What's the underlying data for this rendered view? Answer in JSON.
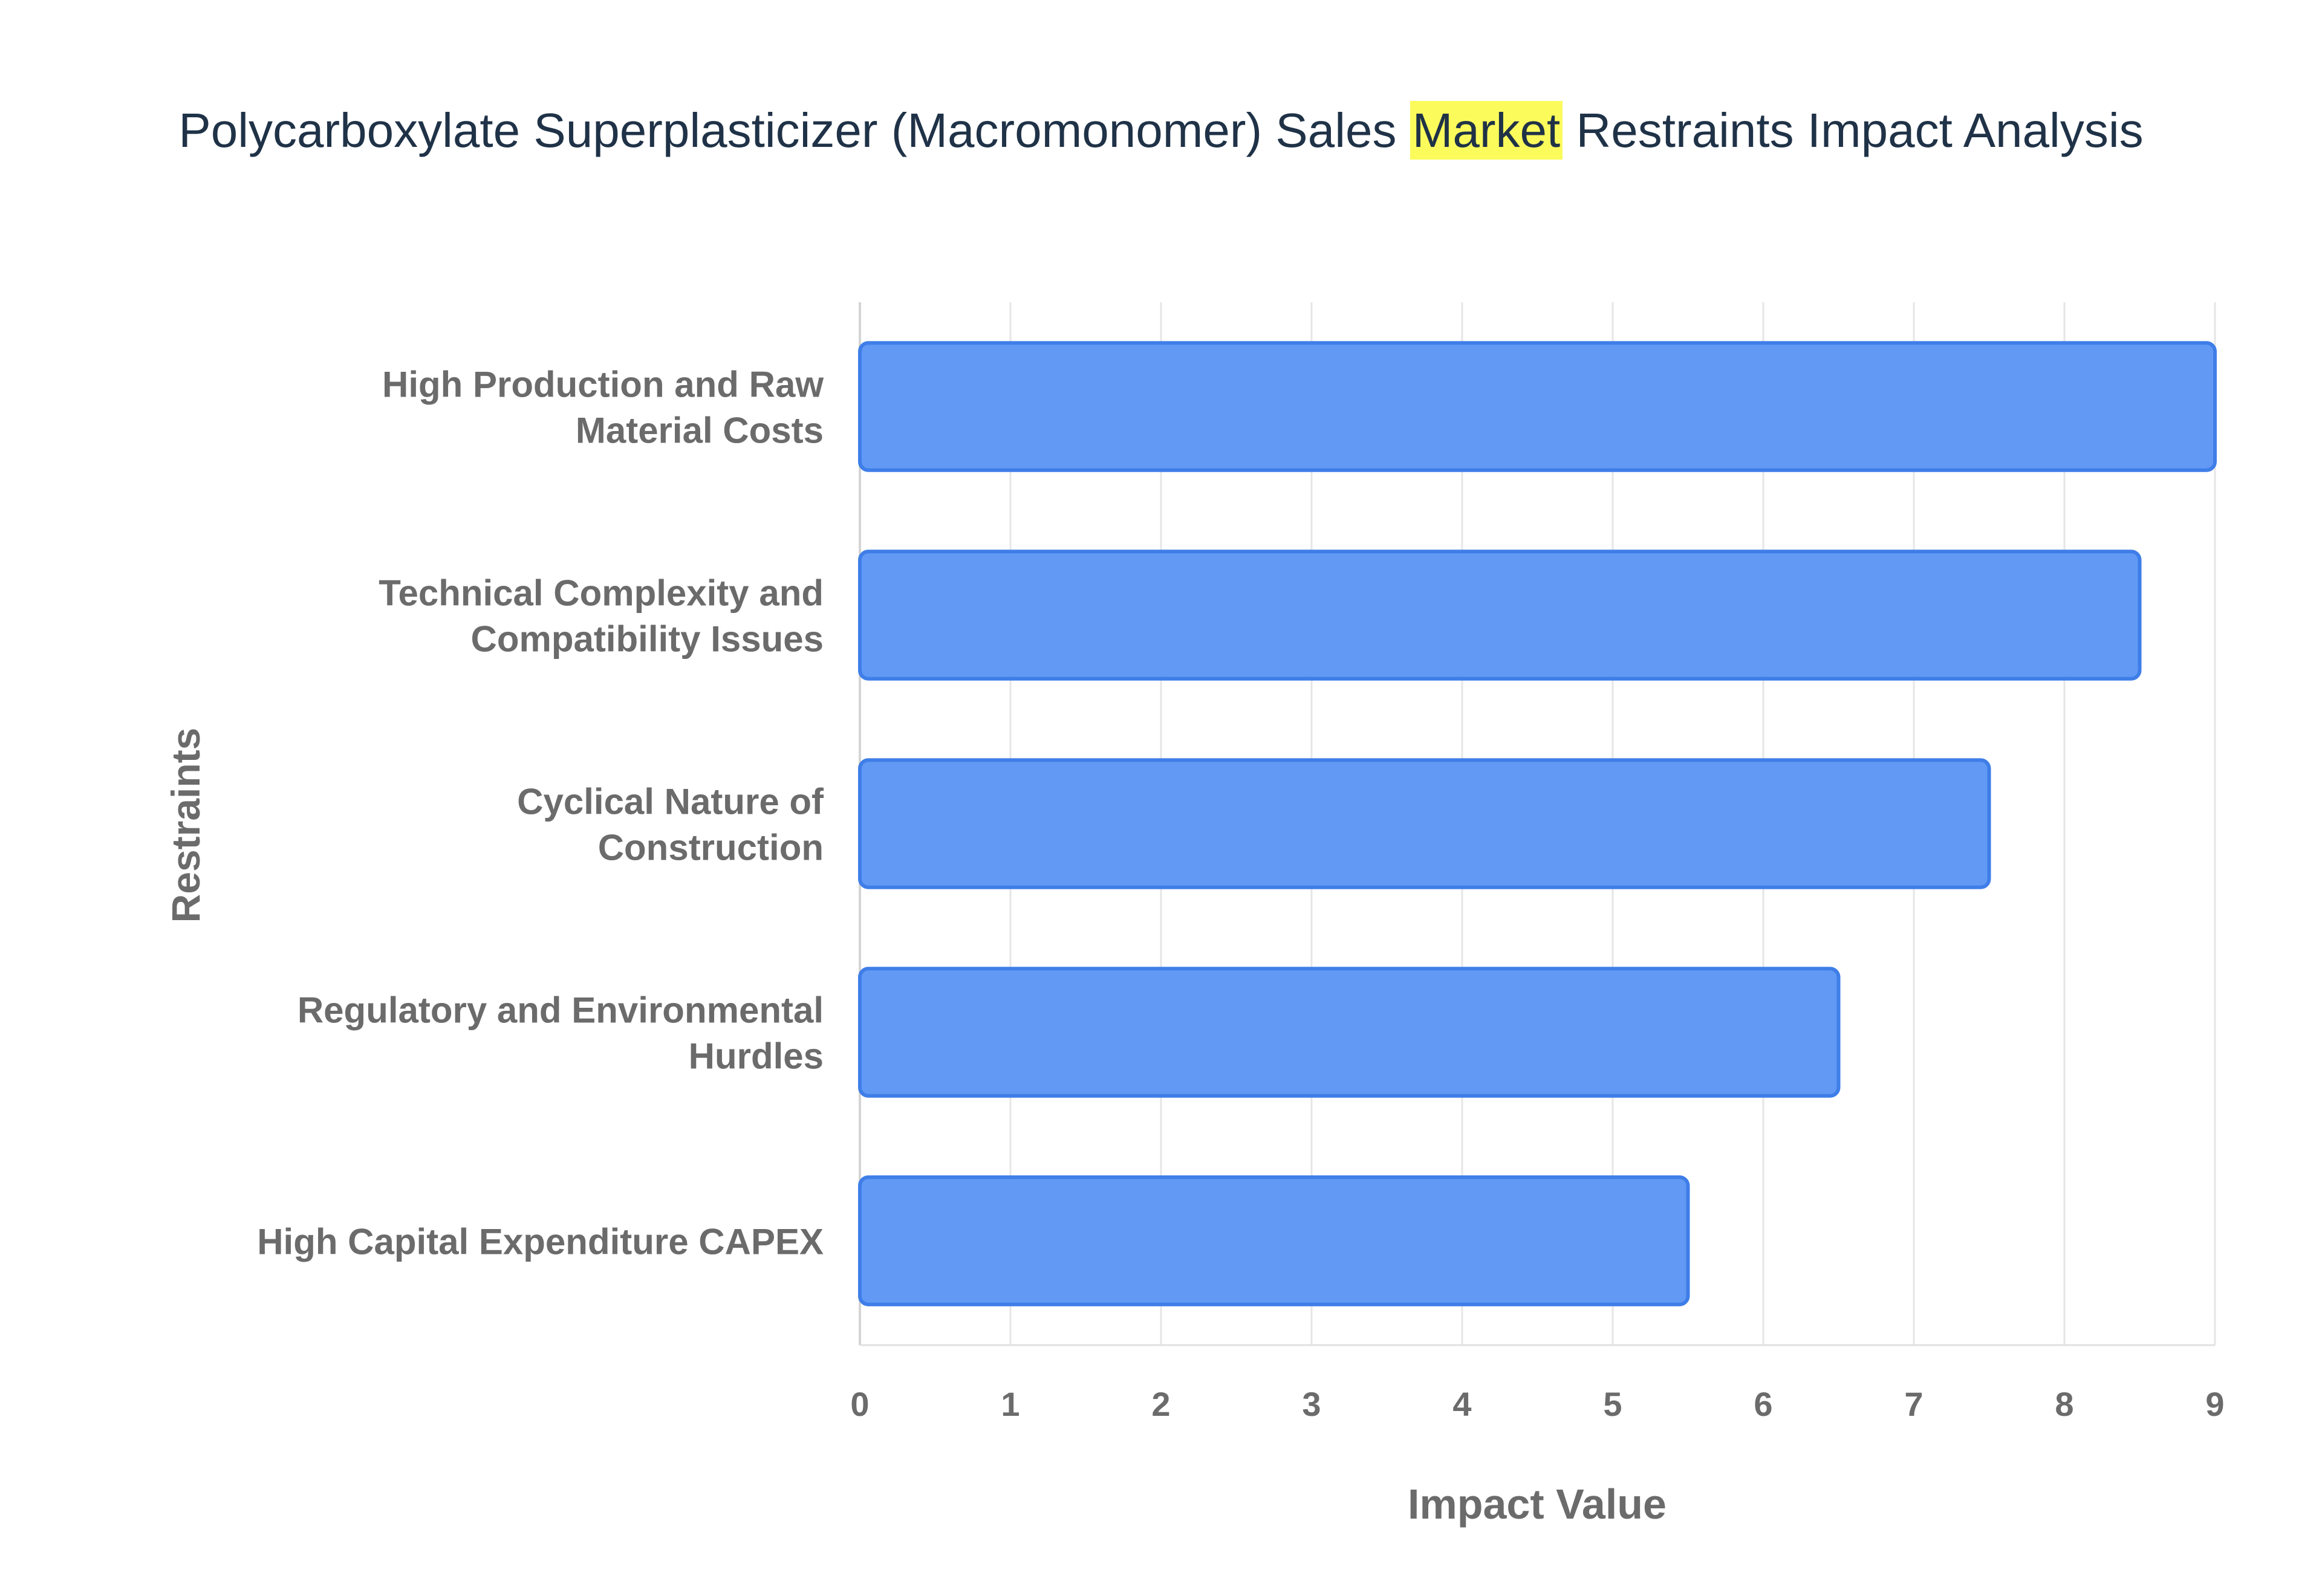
{
  "title": {
    "before": "Polycarboxylate Superplasticizer (Macromonomer) Sales ",
    "highlight": "Market",
    "after": " Restraints Impact Analysis"
  },
  "colors": {
    "bar_fill": "#6199f4",
    "bar_stroke": "#3f7ee8",
    "highlight": "#fbfb5c",
    "title_text": "#1f3247",
    "axis_text": "#6b6b6b",
    "grid": "#e6e6e6"
  },
  "chart_data": {
    "type": "bar",
    "orientation": "horizontal",
    "categories": [
      [
        "High Production and Raw",
        "Material Costs"
      ],
      [
        "Technical Complexity and",
        "Compatibility Issues"
      ],
      [
        "Cyclical Nature of",
        "Construction"
      ],
      [
        "Regulatory and Environmental",
        "Hurdles"
      ],
      [
        "High Capital Expenditure CAPEX"
      ]
    ],
    "values": [
      9,
      8.5,
      7.5,
      6.5,
      5.5
    ],
    "xlabel": "Impact Value",
    "ylabel": "Restraints",
    "xlim": [
      0,
      9
    ],
    "xticks": [
      "0",
      "1",
      "2",
      "3",
      "4",
      "5",
      "6",
      "7",
      "8",
      "9"
    ],
    "grid": true,
    "legend": false
  }
}
